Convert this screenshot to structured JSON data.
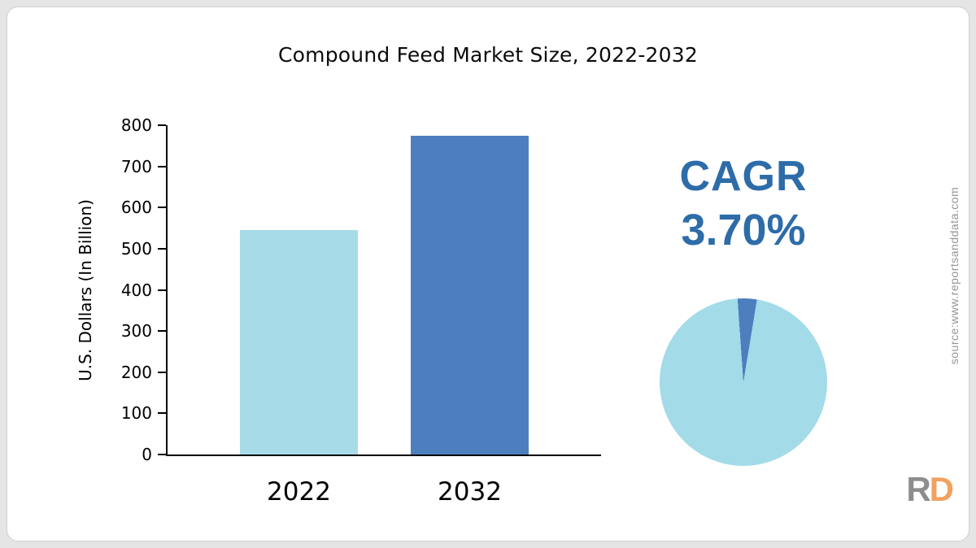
{
  "title": "Compound Feed Market Size, 2022-2032",
  "chart_data": [
    {
      "type": "bar",
      "title": "Compound Feed Market Size, 2022-2032",
      "categories": [
        "2022",
        "2032"
      ],
      "values": [
        545,
        775
      ],
      "colors": [
        "#a7dbe8",
        "#4d7fbe"
      ],
      "xlabel": "",
      "ylabel": "U.S. Dollars (In Billion)",
      "ylim": [
        0,
        800
      ],
      "yticks": [
        0,
        100,
        200,
        300,
        400,
        500,
        600,
        700,
        800
      ],
      "grid": false,
      "legend": false
    },
    {
      "type": "pie",
      "labels": [
        "CAGR",
        "remainder"
      ],
      "values": [
        3.7,
        96.3
      ],
      "colors": [
        "#4d7fbe",
        "#a3dbe8"
      ],
      "start_angle_deg": -4,
      "legend": false
    }
  ],
  "cagr": {
    "label": "CAGR",
    "value": "3.70%",
    "percent": 3.7,
    "color": "#2d6ca8"
  },
  "source": {
    "text": "source:www.reportsanddata.com"
  },
  "logo": {
    "r": "R",
    "d": "D",
    "r_color": "#8d8d8d",
    "d_color": "#f2a15f"
  }
}
